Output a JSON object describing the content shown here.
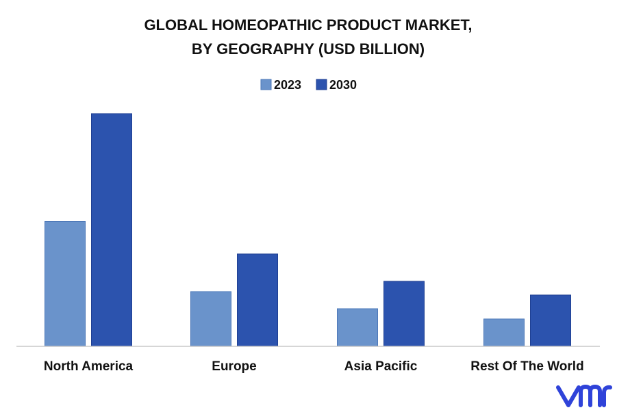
{
  "chart_data": {
    "type": "bar",
    "title_lines": [
      "GLOBAL HOMEOPATHIC PRODUCT MARKET,",
      "BY GEOGRAPHY (USD BILLION)"
    ],
    "categories": [
      "North America",
      "Europe",
      "Asia Pacific",
      "Rest Of The World"
    ],
    "series": [
      {
        "name": "2023",
        "color": "#6a93cb",
        "values": [
          3.65,
          1.6,
          1.1,
          0.8
        ]
      },
      {
        "name": "2030",
        "color": "#2c53ae",
        "values": [
          6.8,
          2.7,
          1.9,
          1.5
        ]
      }
    ],
    "ylim": [
      0,
      7.5
    ],
    "grid": false,
    "legend_position": "top-center"
  },
  "brand": {
    "logo_text": "vmr",
    "color": "#2f43d9"
  }
}
